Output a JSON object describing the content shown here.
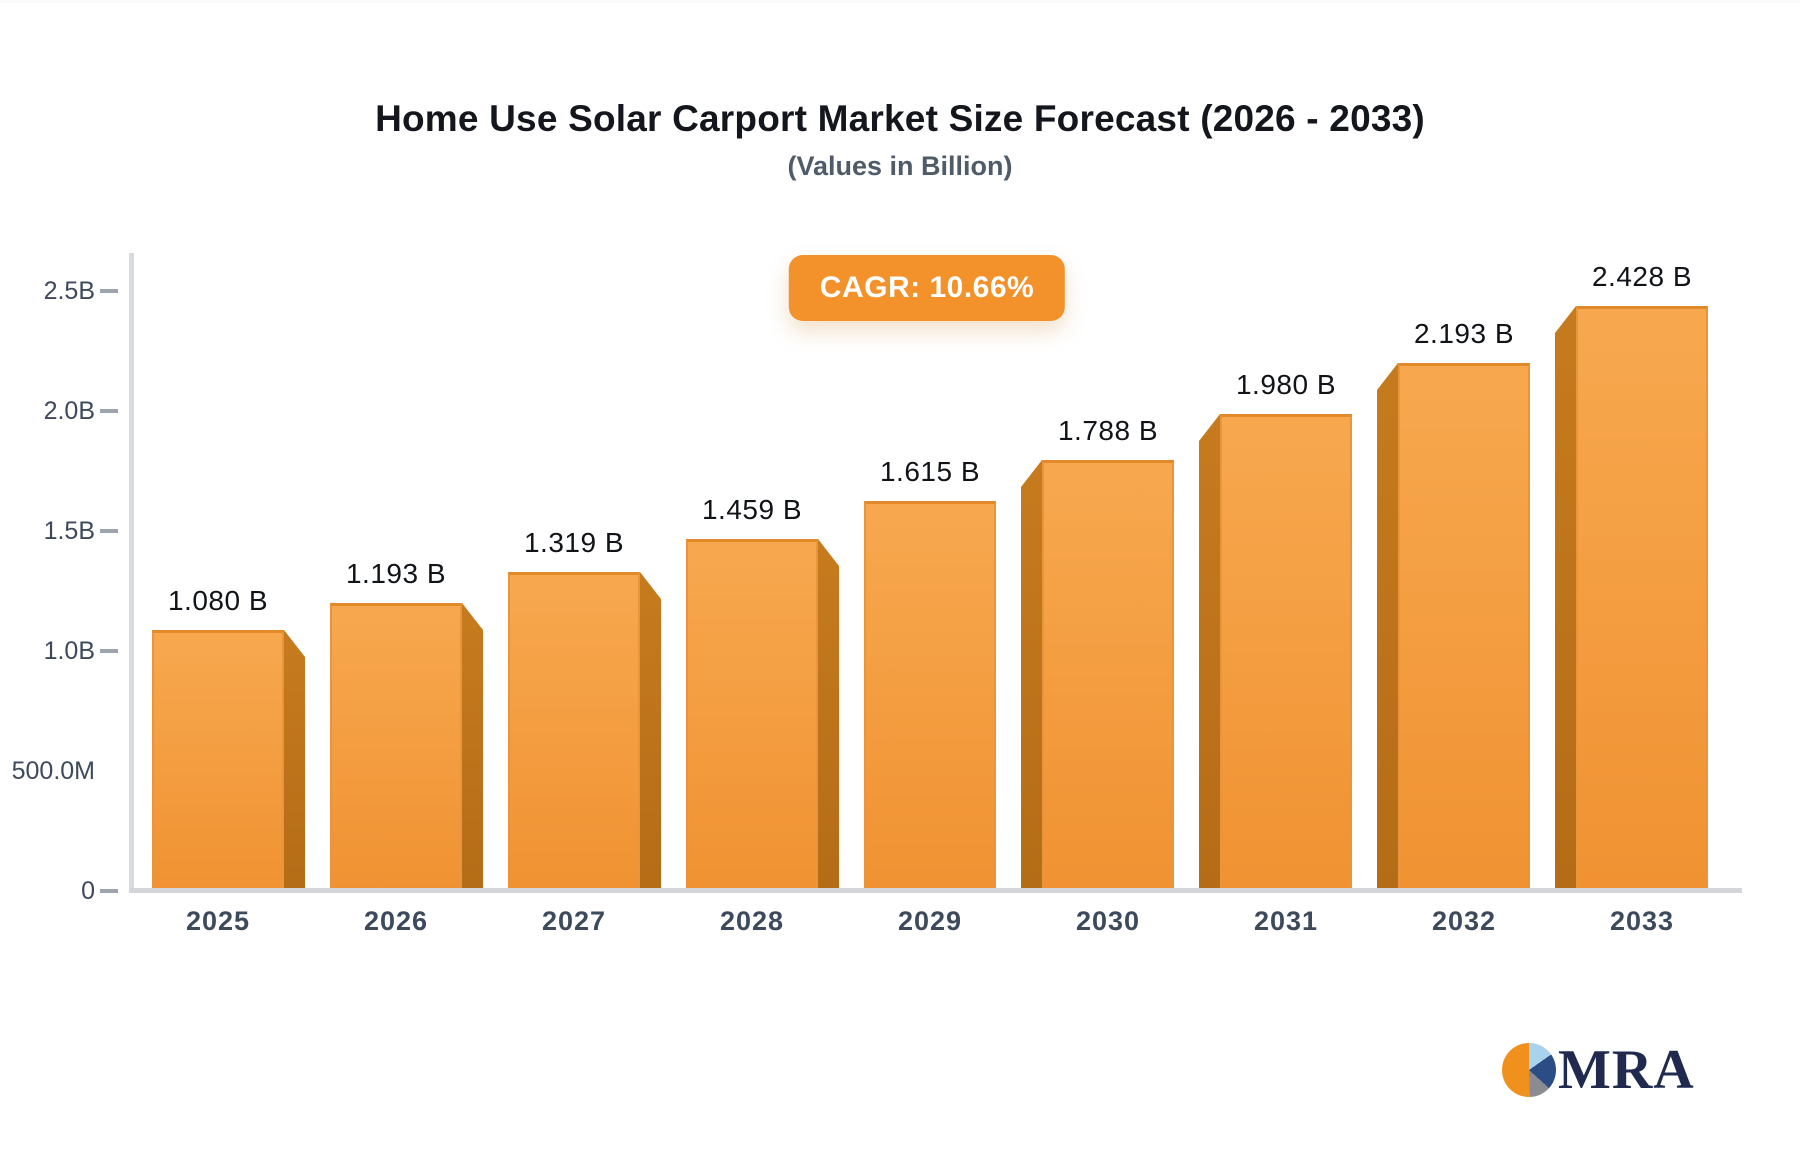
{
  "header": {
    "title": "Home Use Solar Carport Market Size Forecast (2026 - 2033)",
    "subtitle": "(Values in Billion)",
    "cagr_label": "CAGR: 10.66%",
    "cagr_percent": 10.66
  },
  "chart_data": {
    "type": "bar",
    "title": "Home Use Solar Carport Market Size Forecast (2026 - 2033)",
    "subtitle": "(Values in Billion)",
    "unit": "Billion",
    "categories": [
      "2025",
      "2026",
      "2027",
      "2028",
      "2029",
      "2030",
      "2031",
      "2032",
      "2033"
    ],
    "values": [
      1.08,
      1.193,
      1.319,
      1.459,
      1.615,
      1.788,
      1.98,
      2.193,
      2.428
    ],
    "value_labels": [
      "1.080 B",
      "1.193 B",
      "1.319 B",
      "1.459 B",
      "1.615 B",
      "1.788 B",
      "1.980 B",
      "2.193 B",
      "2.428 B"
    ],
    "xlabel": "",
    "ylabel": "",
    "ylim": [
      0,
      2.5
    ],
    "y_ticks": [
      {
        "label": "2.5B",
        "value": 2.5,
        "tick": true
      },
      {
        "label": "2.0B",
        "value": 2.0,
        "tick": true
      },
      {
        "label": "1.5B",
        "value": 1.5,
        "tick": true
      },
      {
        "label": "1.0B",
        "value": 1.0,
        "tick": true
      },
      {
        "label": "500.0M",
        "value": 0.5,
        "tick": false
      },
      {
        "label": "0",
        "value": 0.0,
        "tick": true
      }
    ],
    "grid": false,
    "legend": false,
    "bar_color_top": "#F7A84F",
    "bar_color_bottom": "#F09232",
    "bar_side_color": "#BD7220",
    "accent_color": "#F3922A"
  },
  "footer": {
    "logo_text": "MRA",
    "logo_colors": {
      "orange": "#F0911E",
      "lightblue": "#A9D2ED",
      "navy": "#2C4C86",
      "gray": "#8B8B93",
      "text": "#1F2A4E"
    }
  }
}
